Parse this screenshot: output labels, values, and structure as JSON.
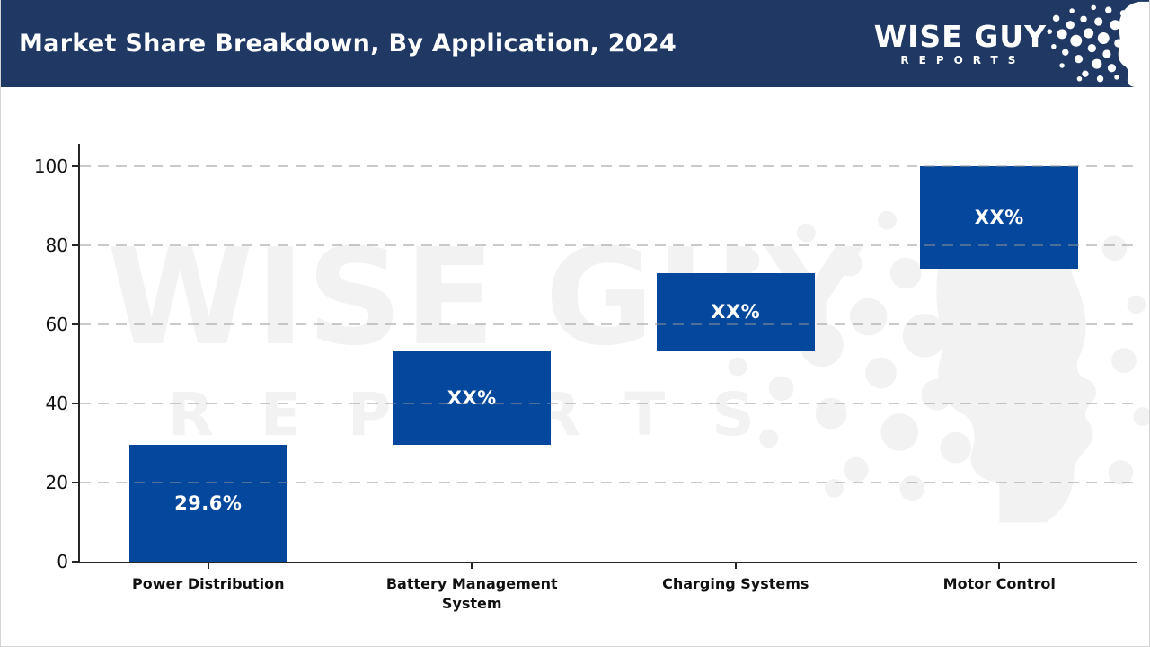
{
  "header": {
    "title": "Market Share Breakdown, By Application, 2024",
    "logo": {
      "wordmark": "WISE GUY",
      "subtext": "REPORTS"
    }
  },
  "watermark": {
    "line1": "WISE GUY",
    "line2": "REPORTS"
  },
  "colors": {
    "header_bg": "#1f3864",
    "title_text": "#ffffff",
    "bar_fill": "#04489e",
    "bar_label_text": "#ffffff",
    "axis": "#262626",
    "tick_text": "#111111",
    "grid_dash": "rgba(150,150,150,0.5)",
    "watermark_grey": "#f2f2f3"
  },
  "chart_data": {
    "type": "bar",
    "subtype": "waterfall",
    "title": "Market Share Breakdown, By Application, 2024",
    "xlabel": "",
    "ylabel": "",
    "ylim": [
      0,
      100
    ],
    "yticks": [
      0,
      20,
      40,
      60,
      80,
      100
    ],
    "grid": "horizontal-dashed",
    "legend": "none",
    "categories": [
      "Power Distribution",
      "Battery Management System",
      "Charging Systems",
      "Motor Control"
    ],
    "bars": [
      {
        "category": "Power Distribution",
        "start": 0,
        "end": 29.6,
        "label": "29.6%"
      },
      {
        "category": "Battery Management System",
        "start": 29.6,
        "end": 53.2,
        "label": "XX%"
      },
      {
        "category": "Charging Systems",
        "start": 53.2,
        "end": 73.0,
        "label": "XX%"
      },
      {
        "category": "Motor Control",
        "start": 74.0,
        "end": 100.0,
        "label": "XX%"
      }
    ]
  }
}
